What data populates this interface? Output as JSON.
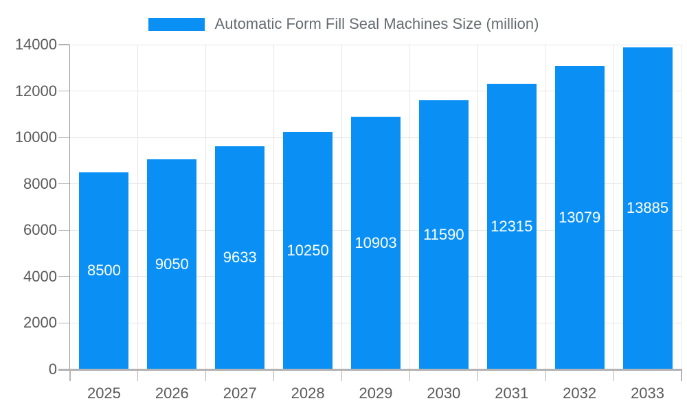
{
  "colors": {
    "bar": "#0a90f5",
    "bar_label": "#ffffff",
    "grid": "#e6e6e6",
    "axis_line": "#b3b3b3",
    "y_axis_line": "#999999",
    "tick_label": "#595959",
    "legend_text": "#666b70",
    "background": "#ffffff"
  },
  "chart_data": {
    "type": "bar",
    "title": "Automatic Form Fill Seal Machines Size (million)",
    "series_name": "Automatic Form Fill Seal Machines Size (million)",
    "categories": [
      "2025",
      "2026",
      "2027",
      "2028",
      "2029",
      "2030",
      "2031",
      "2032",
      "2033"
    ],
    "values": [
      8500,
      9050,
      9633,
      10250,
      10903,
      11590,
      12315,
      13079,
      13885
    ],
    "bar_labels": [
      "8500",
      "9050",
      "9633",
      "10250",
      "10903",
      "11590",
      "12315",
      "13079",
      "13885"
    ],
    "xlabel": "",
    "ylabel": "",
    "ylim": [
      0,
      14000
    ],
    "ytick_step": 2000,
    "ytick_labels": [
      "0",
      "2000",
      "4000",
      "6000",
      "8000",
      "10000",
      "12000",
      "14000"
    ],
    "grid": true,
    "legend_position": "top-center",
    "bar_label_placement": "center-inside"
  }
}
